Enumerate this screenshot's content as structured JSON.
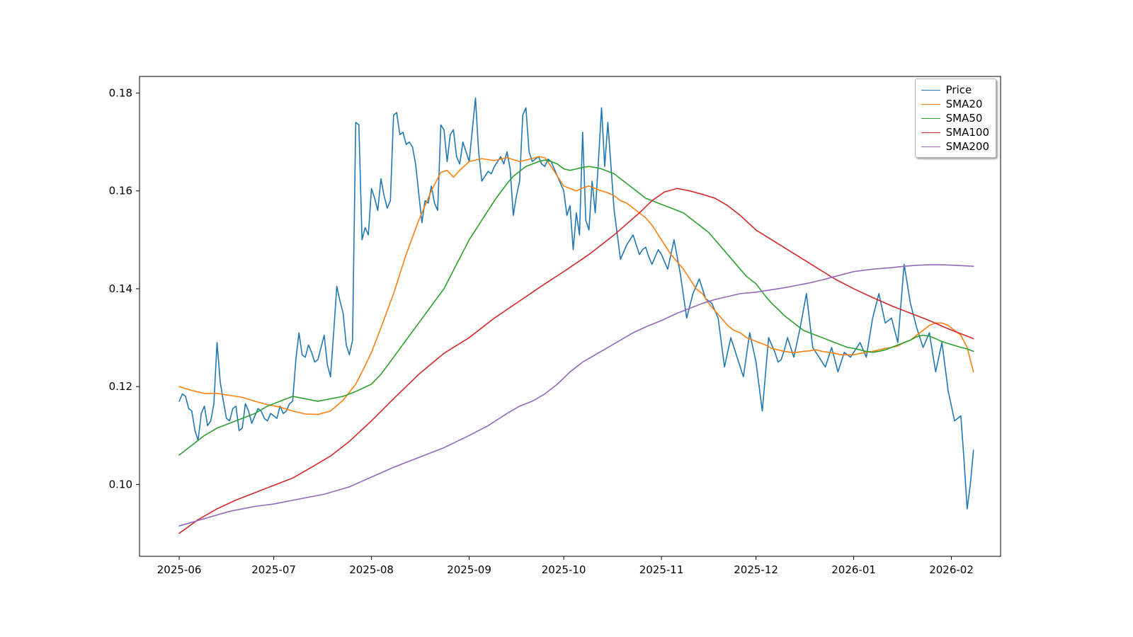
{
  "chart_data": {
    "type": "line",
    "title": "",
    "xlabel": "",
    "ylabel": "",
    "grid": false,
    "legend_position": "upper right",
    "xlim": [
      -12.6,
      260.6
    ],
    "ylim": [
      0.0853,
      0.1834
    ],
    "x_unit": "days since 2025-06-01",
    "xticks": [
      {
        "x": 0,
        "label": "2025-06"
      },
      {
        "x": 30,
        "label": "2025-07"
      },
      {
        "x": 61,
        "label": "2025-08"
      },
      {
        "x": 92,
        "label": "2025-09"
      },
      {
        "x": 122,
        "label": "2025-10"
      },
      {
        "x": 153,
        "label": "2025-11"
      },
      {
        "x": 183,
        "label": "2025-12"
      },
      {
        "x": 214,
        "label": "2026-01"
      },
      {
        "x": 245,
        "label": "2026-02"
      }
    ],
    "yticks": [
      {
        "y": 0.1,
        "label": "0.10"
      },
      {
        "y": 0.12,
        "label": "0.12"
      },
      {
        "y": 0.14,
        "label": "0.14"
      },
      {
        "y": 0.16,
        "label": "0.16"
      },
      {
        "y": 0.18,
        "label": "0.18"
      }
    ],
    "series": [
      {
        "name": "Price",
        "color": "#1f77b4",
        "x_start": 0,
        "x_step": 1,
        "values": [
          0.117,
          0.1185,
          0.118,
          0.1155,
          0.115,
          0.111,
          0.109,
          0.1145,
          0.116,
          0.112,
          0.113,
          0.1165,
          0.129,
          0.121,
          0.117,
          0.1135,
          0.113,
          0.1155,
          0.116,
          0.111,
          0.1115,
          0.1165,
          0.115,
          0.1125,
          0.114,
          0.1155,
          0.115,
          0.1135,
          0.113,
          0.1145,
          0.114,
          0.1135,
          0.116,
          0.1145,
          0.115,
          0.1165,
          0.117,
          0.1255,
          0.131,
          0.1265,
          0.126,
          0.1285,
          0.127,
          0.125,
          0.1255,
          0.128,
          0.1305,
          0.1245,
          0.122,
          0.131,
          0.1405,
          0.1375,
          0.135,
          0.1285,
          0.1265,
          0.1295,
          0.174,
          0.1735,
          0.15,
          0.1525,
          0.151,
          0.1605,
          0.1585,
          0.156,
          0.1625,
          0.159,
          0.1565,
          0.158,
          0.1755,
          0.176,
          0.1715,
          0.172,
          0.1695,
          0.17,
          0.169,
          0.1655,
          0.1595,
          0.1535,
          0.158,
          0.1575,
          0.161,
          0.1575,
          0.156,
          0.1735,
          0.1725,
          0.166,
          0.1715,
          0.1725,
          0.167,
          0.1655,
          0.17,
          0.168,
          0.166,
          0.1725,
          0.179,
          0.168,
          0.162,
          0.163,
          0.164,
          0.1635,
          0.165,
          0.166,
          0.167,
          0.1655,
          0.168,
          0.1645,
          0.155,
          0.159,
          0.162,
          0.1755,
          0.177,
          0.168,
          0.166,
          0.1665,
          0.167,
          0.1655,
          0.165,
          0.1665,
          0.166,
          0.1645,
          0.163,
          0.1615,
          0.16,
          0.155,
          0.157,
          0.148,
          0.1555,
          0.151,
          0.172,
          0.154,
          0.152,
          0.162,
          0.1555,
          0.166,
          0.177,
          0.165,
          0.174,
          0.165,
          0.156,
          0.151,
          0.146,
          0.1475,
          0.149,
          0.15,
          0.151,
          0.149,
          0.147,
          0.148,
          0.1485,
          0.1465,
          0.145,
          0.1465,
          0.148,
          0.147,
          0.1455,
          0.144,
          0.147,
          0.15,
          0.1465,
          0.143,
          0.1385,
          0.134,
          0.1365,
          0.139,
          0.1405,
          0.142,
          0.14,
          0.138,
          0.1375,
          0.137,
          0.1355,
          0.134,
          0.129,
          0.124,
          0.127,
          0.13,
          0.128,
          0.126,
          0.124,
          0.122,
          0.1265,
          0.131,
          0.128,
          0.125,
          0.12,
          0.115,
          0.1225,
          0.13,
          0.1285,
          0.127,
          0.125,
          0.1255,
          0.1275,
          0.13,
          0.128,
          0.126,
          0.129,
          0.132,
          0.1355,
          0.139,
          0.1335,
          0.128,
          0.127,
          0.126,
          0.125,
          0.124,
          0.126,
          0.128,
          0.1255,
          0.123,
          0.125,
          0.127,
          0.1265,
          0.126,
          0.127,
          0.128,
          0.129,
          0.1275,
          0.126,
          0.13,
          0.134,
          0.1365,
          0.139,
          0.136,
          0.133,
          0.1335,
          0.134,
          0.1315,
          0.129,
          0.137,
          0.145,
          0.141,
          0.137,
          0.1345,
          0.132,
          0.13,
          0.128,
          0.1295,
          0.131,
          0.127,
          0.123,
          0.126,
          0.129,
          0.124,
          0.119,
          0.116,
          0.113,
          0.1135,
          0.114,
          0.105,
          0.095,
          0.1,
          0.107
        ]
      },
      {
        "name": "SMA20",
        "color": "#ff7f0e",
        "x": [
          0,
          4,
          8,
          12,
          16,
          20,
          24,
          28,
          32,
          36,
          40,
          44,
          48,
          52,
          56,
          58,
          61,
          64,
          68,
          72,
          76,
          80,
          83,
          85,
          87,
          89,
          92,
          96,
          100,
          104,
          108,
          112,
          114,
          116,
          118,
          120,
          122,
          124,
          126,
          128,
          130,
          132,
          134,
          136,
          138,
          140,
          142,
          144,
          146,
          148,
          150,
          153,
          156,
          158,
          160,
          162,
          164,
          166,
          168,
          170,
          172,
          174,
          176,
          178,
          180,
          182,
          184,
          186,
          188,
          190,
          192,
          194,
          196,
          198,
          200,
          202,
          204,
          206,
          208,
          210,
          212,
          214,
          216,
          218,
          220,
          222,
          224,
          226,
          228,
          230,
          232,
          234,
          236,
          238,
          240,
          242,
          244,
          246,
          248,
          250,
          252
        ],
        "values": [
          0.12,
          0.1192,
          0.1186,
          0.1186,
          0.1182,
          0.1178,
          0.117,
          0.1163,
          0.1158,
          0.115,
          0.1144,
          0.1143,
          0.115,
          0.1172,
          0.1205,
          0.123,
          0.127,
          0.132,
          0.139,
          0.147,
          0.154,
          0.16,
          0.1638,
          0.1642,
          0.1628,
          0.1642,
          0.166,
          0.1666,
          0.1662,
          0.1668,
          0.166,
          0.1666,
          0.167,
          0.1668,
          0.165,
          0.163,
          0.161,
          0.1605,
          0.16,
          0.1606,
          0.161,
          0.1605,
          0.16,
          0.1596,
          0.159,
          0.158,
          0.1575,
          0.1565,
          0.1555,
          0.1545,
          0.153,
          0.15,
          0.147,
          0.1455,
          0.144,
          0.142,
          0.14,
          0.139,
          0.137,
          0.1355,
          0.134,
          0.1325,
          0.1315,
          0.131,
          0.13,
          0.1295,
          0.129,
          0.1285,
          0.1278,
          0.1275,
          0.1272,
          0.127,
          0.127,
          0.1272,
          0.1273,
          0.1275,
          0.1272,
          0.127,
          0.1268,
          0.1265,
          0.1265,
          0.1265,
          0.1268,
          0.127,
          0.1272,
          0.1275,
          0.1278,
          0.128,
          0.1283,
          0.129,
          0.1295,
          0.1305,
          0.1315,
          0.1325,
          0.133,
          0.133,
          0.1325,
          0.1315,
          0.1305,
          0.128,
          0.123
        ]
      },
      {
        "name": "SMA50",
        "color": "#2ca02c",
        "x": [
          0,
          4,
          8,
          12,
          16,
          20,
          24,
          28,
          32,
          36,
          40,
          44,
          48,
          52,
          56,
          61,
          64,
          68,
          72,
          76,
          80,
          84,
          88,
          92,
          96,
          100,
          104,
          106,
          108,
          110,
          112,
          114,
          116,
          118,
          120,
          122,
          124,
          126,
          128,
          130,
          132,
          134,
          136,
          138,
          140,
          142,
          144,
          146,
          148,
          150,
          152,
          154,
          156,
          158,
          160,
          162,
          164,
          166,
          168,
          170,
          172,
          174,
          176,
          178,
          180,
          183,
          186,
          188,
          190,
          192,
          194,
          196,
          198,
          200,
          202,
          204,
          206,
          208,
          210,
          212,
          214,
          216,
          218,
          220,
          222,
          224,
          226,
          228,
          230,
          232,
          234,
          236,
          238,
          240,
          242,
          244,
          246,
          248,
          250,
          252
        ],
        "values": [
          0.106,
          0.108,
          0.11,
          0.1115,
          0.1125,
          0.1135,
          0.1145,
          0.116,
          0.117,
          0.118,
          0.1175,
          0.117,
          0.1175,
          0.118,
          0.119,
          0.1205,
          0.1225,
          0.126,
          0.1295,
          0.133,
          0.1365,
          0.14,
          0.145,
          0.15,
          0.154,
          0.158,
          0.1615,
          0.163,
          0.164,
          0.165,
          0.1655,
          0.166,
          0.1663,
          0.166,
          0.1655,
          0.1645,
          0.1642,
          0.1645,
          0.1648,
          0.165,
          0.1648,
          0.1645,
          0.164,
          0.1635,
          0.1625,
          0.1615,
          0.1605,
          0.1595,
          0.1585,
          0.158,
          0.1575,
          0.157,
          0.1565,
          0.156,
          0.1555,
          0.1545,
          0.1535,
          0.1525,
          0.1515,
          0.15,
          0.1485,
          0.147,
          0.1455,
          0.144,
          0.1425,
          0.141,
          0.1385,
          0.137,
          0.1358,
          0.1345,
          0.1335,
          0.1325,
          0.1315,
          0.131,
          0.1305,
          0.13,
          0.1295,
          0.129,
          0.1285,
          0.128,
          0.1278,
          0.1275,
          0.1272,
          0.127,
          0.1272,
          0.1275,
          0.128,
          0.1285,
          0.129,
          0.1295,
          0.1302,
          0.1305,
          0.1303,
          0.1298,
          0.1292,
          0.1288,
          0.1284,
          0.128,
          0.1277,
          0.1272
        ]
      },
      {
        "name": "SMA100",
        "color": "#d62728",
        "x": [
          0,
          6,
          12,
          18,
          24,
          30,
          36,
          42,
          48,
          54,
          61,
          68,
          76,
          84,
          92,
          100,
          108,
          116,
          122,
          130,
          138,
          146,
          150,
          154,
          158,
          162,
          166,
          170,
          174,
          178,
          183,
          188,
          193,
          198,
          203,
          208,
          214,
          220,
          226,
          232,
          238,
          244,
          248,
          252
        ],
        "values": [
          0.09,
          0.0928,
          0.095,
          0.0968,
          0.0983,
          0.0998,
          0.1013,
          0.1035,
          0.1058,
          0.1088,
          0.113,
          0.1175,
          0.1225,
          0.1268,
          0.13,
          0.134,
          0.1375,
          0.141,
          0.1435,
          0.147,
          0.151,
          0.1555,
          0.158,
          0.1598,
          0.1605,
          0.16,
          0.1593,
          0.1585,
          0.157,
          0.155,
          0.152,
          0.15,
          0.148,
          0.146,
          0.144,
          0.142,
          0.14,
          0.1382,
          0.1365,
          0.135,
          0.1335,
          0.1318,
          0.1308,
          0.1298
        ]
      },
      {
        "name": "SMA200",
        "color": "#9467bd",
        "x": [
          0,
          8,
          16,
          24,
          30,
          38,
          46,
          54,
          61,
          68,
          76,
          84,
          92,
          98,
          104,
          108,
          112,
          116,
          120,
          124,
          128,
          132,
          136,
          140,
          144,
          148,
          153,
          158,
          162,
          166,
          170,
          174,
          178,
          183,
          188,
          192,
          196,
          200,
          204,
          208,
          214,
          220,
          226,
          230,
          234,
          238,
          242,
          246,
          252
        ],
        "values": [
          0.0915,
          0.093,
          0.0945,
          0.0955,
          0.096,
          0.097,
          0.098,
          0.0995,
          0.1015,
          0.1035,
          0.1055,
          0.1075,
          0.11,
          0.112,
          0.1145,
          0.116,
          0.117,
          0.1185,
          0.1205,
          0.123,
          0.125,
          0.1265,
          0.128,
          0.1295,
          0.131,
          0.1322,
          0.1335,
          0.135,
          0.136,
          0.137,
          0.1378,
          0.1384,
          0.139,
          0.1393,
          0.1398,
          0.1402,
          0.1407,
          0.1412,
          0.1418,
          0.1425,
          0.1435,
          0.144,
          0.1443,
          0.1446,
          0.1448,
          0.1449,
          0.1449,
          0.1448,
          0.1446
        ]
      }
    ]
  }
}
